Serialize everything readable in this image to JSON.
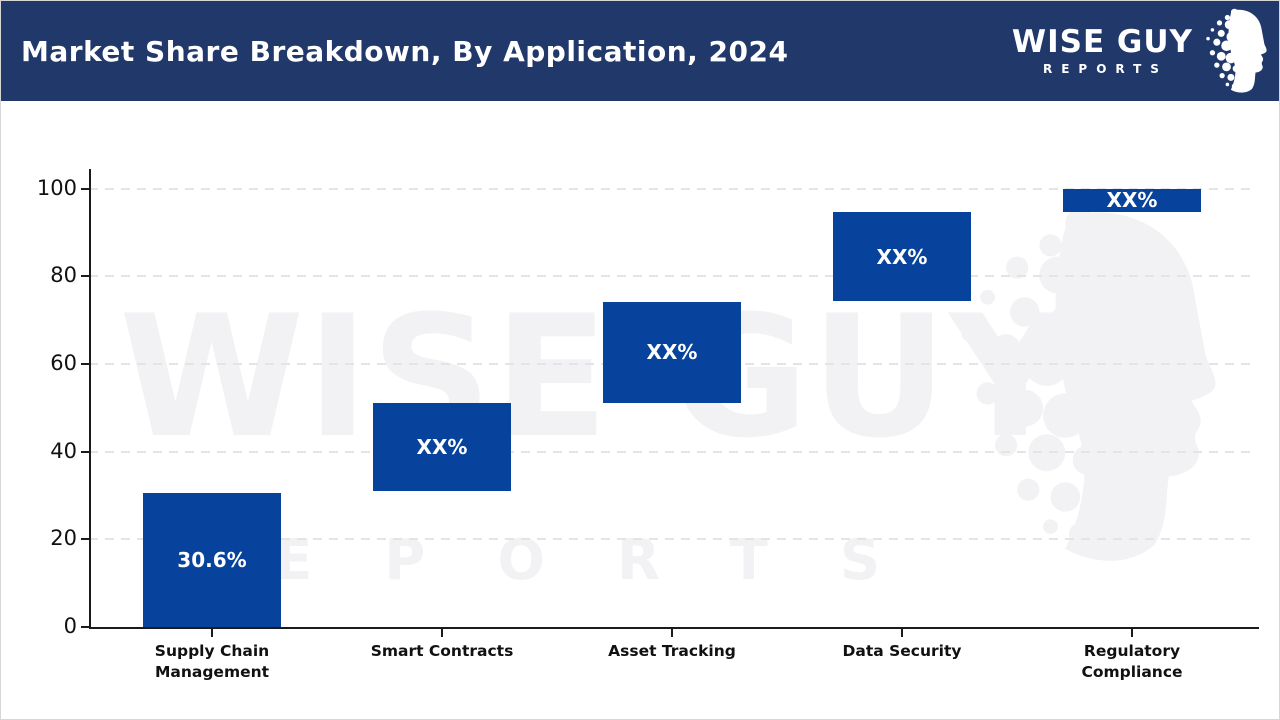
{
  "header": {
    "title": "Market Share Breakdown, By Application, 2024",
    "logo": {
      "line1": "WISE GUY",
      "line2": "REPORTS"
    }
  },
  "watermark": {
    "line1": "WISE GUY",
    "line2": "REPORTS"
  },
  "colors": {
    "header_bg": "#21386b",
    "bar": "#07439c",
    "grid": "#e4e4e6",
    "axis": "#1b1b1b",
    "bar_label": "#ffffff",
    "watermark": "#f2f2f4"
  },
  "chart_data": {
    "type": "bar",
    "subtype": "waterfall",
    "title": "Market Share Breakdown, By Application, 2024",
    "xlabel": "",
    "ylabel": "",
    "grid": "dashed horizontal",
    "legend": "none",
    "ylim": [
      0,
      105
    ],
    "yticks": [
      0,
      20,
      40,
      60,
      80,
      100
    ],
    "categories": [
      "Supply Chain Management",
      "Smart Contracts",
      "Asset Tracking",
      "Data Security",
      "Regulatory Compliance"
    ],
    "segments": [
      {
        "category_lines": [
          "Supply Chain",
          "Management"
        ],
        "start": 0,
        "end": 30.6,
        "label": "30.6%"
      },
      {
        "category_lines": [
          "Smart Contracts"
        ],
        "start": 31.0,
        "end": 51.1,
        "label": "XX%"
      },
      {
        "category_lines": [
          "Asset Tracking"
        ],
        "start": 51.1,
        "end": 74.1,
        "label": "XX%"
      },
      {
        "category_lines": [
          "Data Security"
        ],
        "start": 74.3,
        "end": 94.6,
        "label": "XX%"
      },
      {
        "category_lines": [
          "Regulatory",
          "Compliance"
        ],
        "start": 94.6,
        "end": 100,
        "label": "XX%"
      }
    ]
  }
}
